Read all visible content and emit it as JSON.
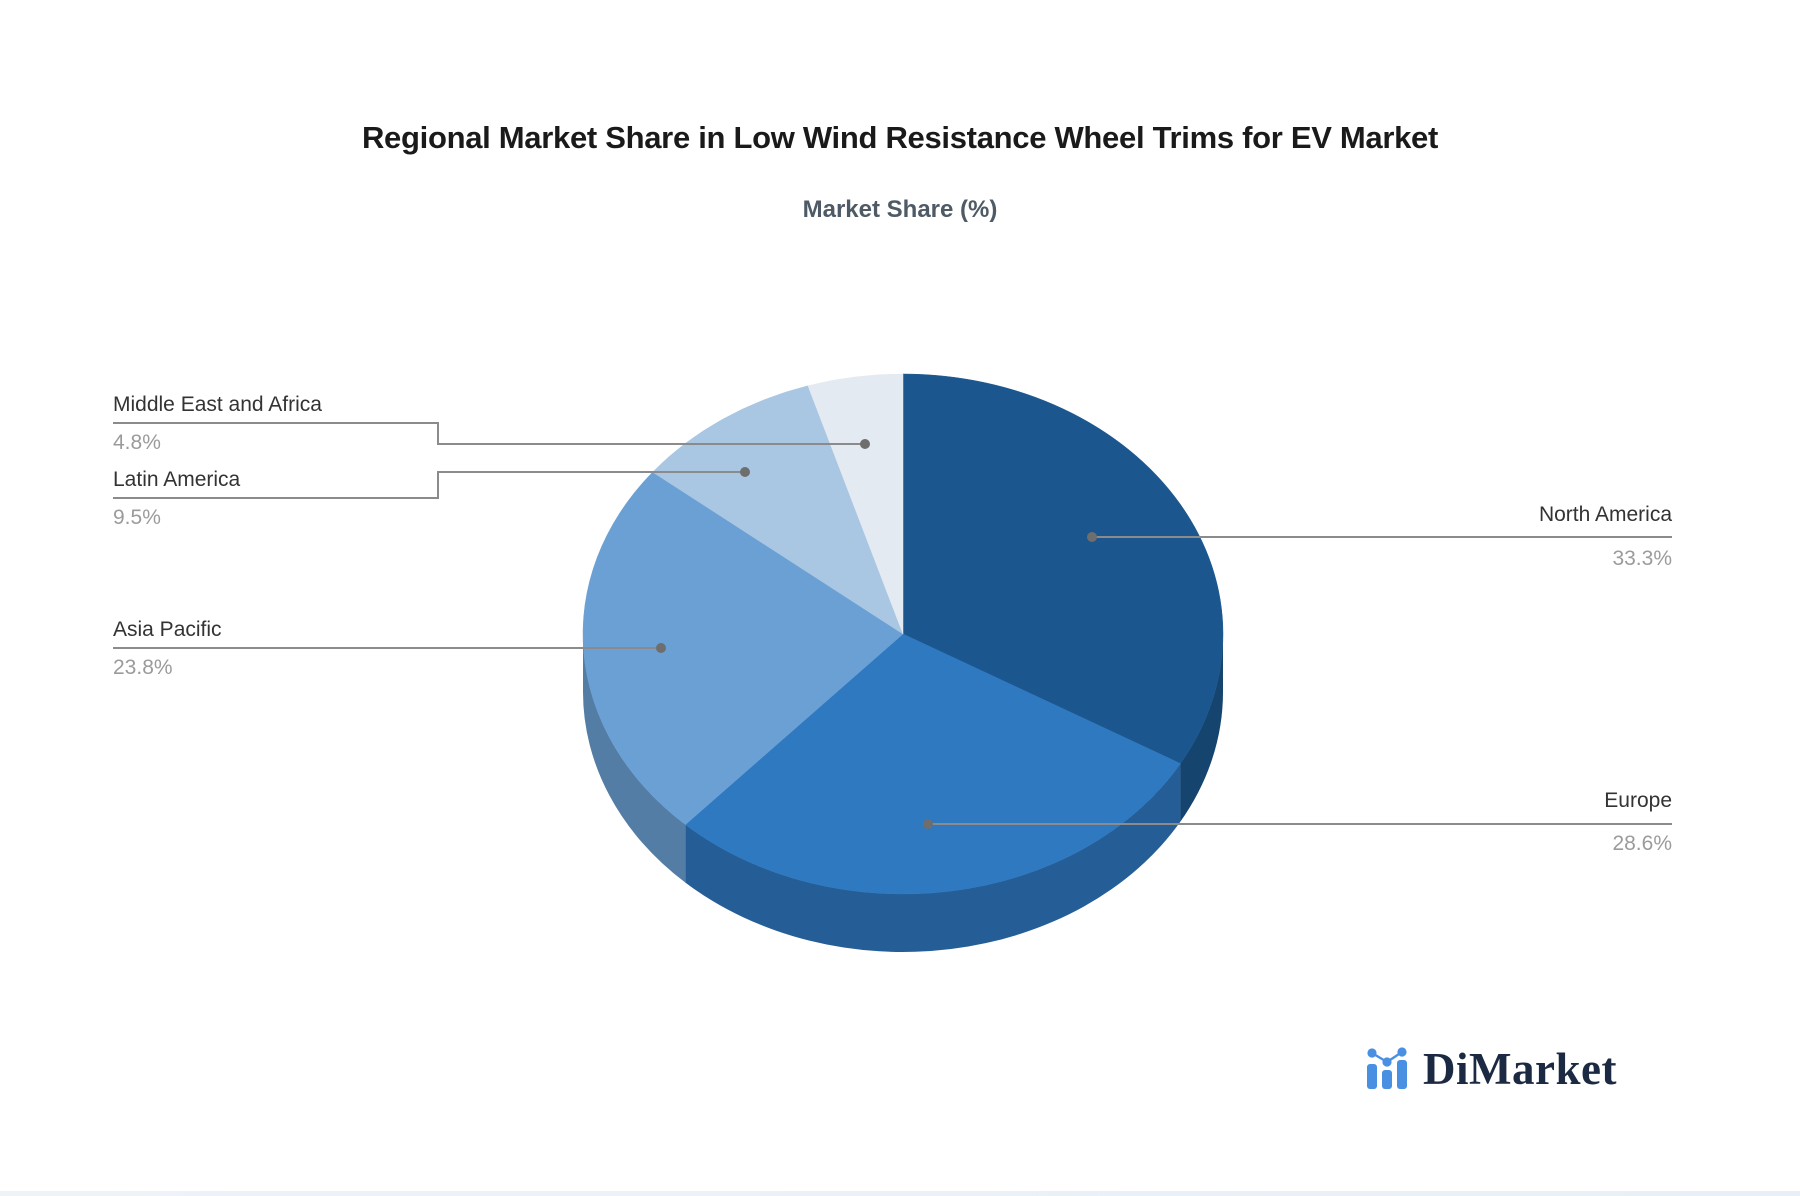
{
  "header": {
    "title": "Regional Market Share in Low Wind Resistance Wheel Trims for EV Market",
    "subtitle": "Market Share (%)"
  },
  "chart_data": {
    "type": "pie",
    "title": "Regional Market Share in Low Wind Resistance Wheel Trims for EV Market",
    "subtitle": "Market Share (%)",
    "unit": "%",
    "style": "3d",
    "direction": "clockwise",
    "start_angle_deg": 0,
    "legend_position": "callout-labels",
    "slices": [
      {
        "label": "North America",
        "value": 33.3,
        "display": "33.3%",
        "color": "#1b578e"
      },
      {
        "label": "Europe",
        "value": 28.6,
        "display": "28.6%",
        "color": "#2f79c1"
      },
      {
        "label": "Asia Pacific",
        "value": 23.8,
        "display": "23.8%",
        "color": "#6ba0d4"
      },
      {
        "label": "Latin America",
        "value": 9.5,
        "display": "9.5%",
        "color": "#a9c7e3"
      },
      {
        "label": "Middle East and Africa",
        "value": 4.8,
        "display": "4.8%",
        "color": "#e4eaf1"
      }
    ]
  },
  "brand": {
    "name": "DiMarket",
    "accent_color": "#4a90e2",
    "text_color": "#1b2942"
  },
  "colors": {
    "connector_line": "#8b8b8b",
    "connector_dot": "#6e6e6e",
    "label_text": "#333333",
    "percent_text": "#9b9b9b",
    "background": "#ffffff"
  }
}
